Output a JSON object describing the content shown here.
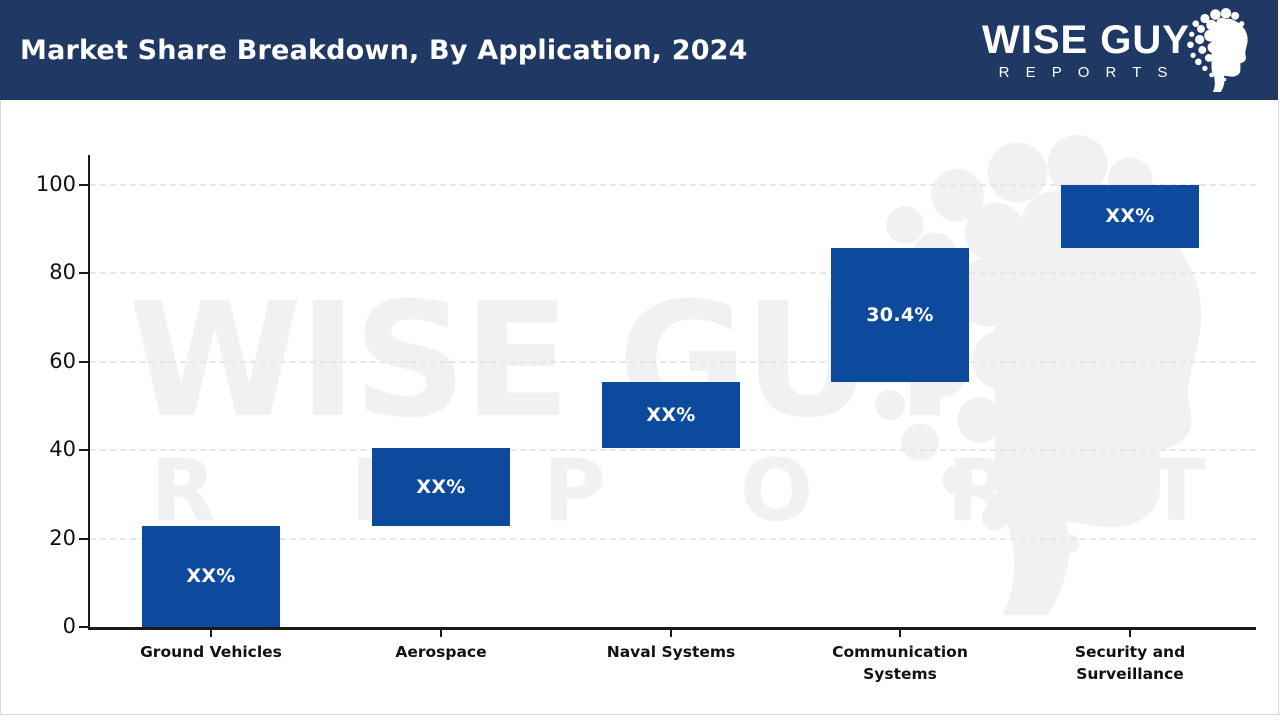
{
  "header": {
    "title": "Market Share Breakdown, By Application, 2024",
    "bg_color": "#1f3864",
    "logo": {
      "line1": "WISE GUY",
      "line2": "R E P O R T S"
    }
  },
  "watermark": {
    "line1": "WISE GUY",
    "line2": "R E P O R T S"
  },
  "chart_data": {
    "type": "bar",
    "subtype": "waterfall",
    "title": "Market Share Breakdown, By Application, 2024",
    "xlabel": "",
    "ylabel": "",
    "ylim": [
      0,
      100
    ],
    "yticks": [
      0,
      20,
      40,
      60,
      80,
      100
    ],
    "grid": true,
    "legend": false,
    "bar_color": "#0d4a9e",
    "categories": [
      "Ground Vehicles",
      "Aerospace",
      "Naval Systems",
      "Communication Systems",
      "Security and Surveillance"
    ],
    "segments": [
      {
        "category": "Ground Vehicles",
        "start": 0,
        "end": 22.9,
        "label": "XX%"
      },
      {
        "category": "Aerospace",
        "start": 22.9,
        "end": 40.5,
        "label": "XX%"
      },
      {
        "category": "Naval Systems",
        "start": 40.5,
        "end": 55.4,
        "label": "XX%"
      },
      {
        "category": "Communication Systems",
        "start": 55.4,
        "end": 85.8,
        "label": "30.4%"
      },
      {
        "category": "Security and Surveillance",
        "start": 85.8,
        "end": 100,
        "label": "XX%"
      }
    ]
  }
}
